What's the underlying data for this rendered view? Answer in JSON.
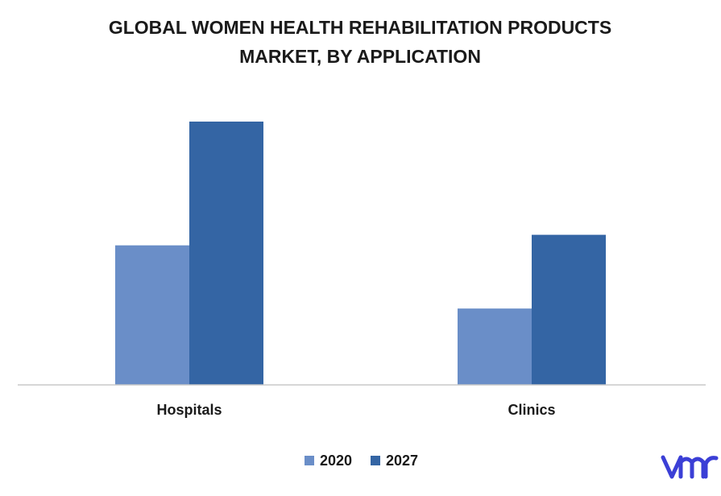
{
  "chart_data": {
    "type": "bar",
    "title_lines": [
      "GLOBAL WOMEN HEALTH REHABILITATION PRODUCTS",
      "MARKET, BY APPLICATION"
    ],
    "categories": [
      "Hospitals",
      "Clinics"
    ],
    "series": [
      {
        "name": "2020",
        "values": [
          53,
          29
        ],
        "color": "#6a8ec8"
      },
      {
        "name": "2027",
        "values": [
          100,
          57
        ],
        "color": "#3465a4"
      }
    ],
    "ylim": [
      0,
      100
    ],
    "grid": false,
    "y_axis_shown": false,
    "legend_position": "bottom-center"
  },
  "brand": {
    "logo_text": "vmr",
    "logo_color": "#3b3fd6"
  }
}
